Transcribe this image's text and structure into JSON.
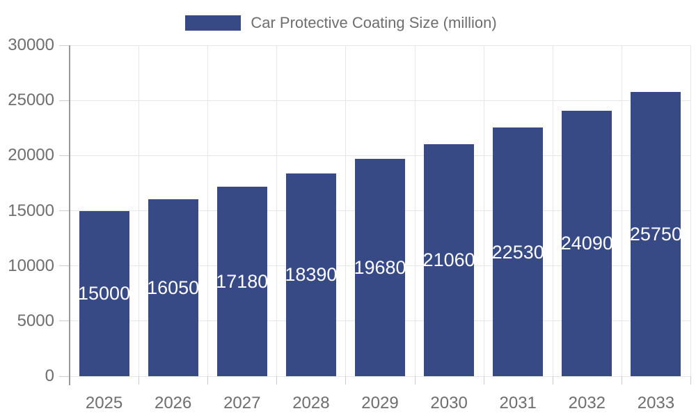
{
  "legend": {
    "label": "Car Protective Coating Size (million)"
  },
  "chart_data": {
    "type": "bar",
    "title": "Car Protective Coating Size (million)",
    "series_name": "Car Protective Coating Size (million)",
    "categories": [
      "2025",
      "2026",
      "2027",
      "2028",
      "2029",
      "2030",
      "2031",
      "2032",
      "2033"
    ],
    "values": [
      15000,
      16050,
      17180,
      18390,
      19680,
      21060,
      22530,
      24090,
      25750
    ],
    "xlabel": "",
    "ylabel": "",
    "ylim": [
      0,
      30000
    ],
    "yticks": [
      0,
      5000,
      10000,
      15000,
      20000,
      25000,
      30000
    ],
    "grid": true,
    "legend_position": "top",
    "value_labels": "inside-middle",
    "colors": {
      "bar": "#374a86",
      "grid": "#e6e6e6",
      "axis_line": "#999999",
      "tick": "#cccccc",
      "axis_text": "#6e6e6e",
      "legend_text": "#6e6e6e",
      "value_label_text": "#ffffff",
      "background": "#ffffff"
    }
  }
}
